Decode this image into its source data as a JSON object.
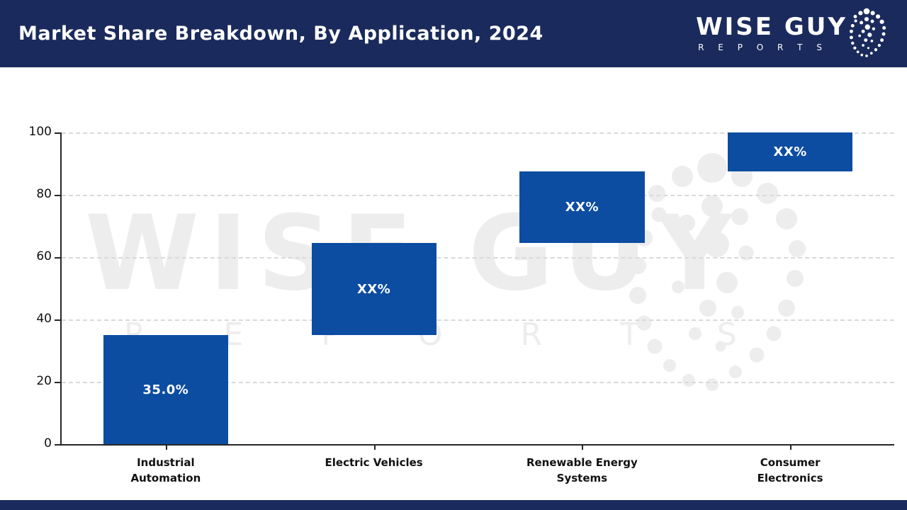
{
  "header": {
    "title": "Market Share Breakdown, By Application, 2024",
    "brand": {
      "name": "WISE GUY",
      "sub": "R E P O R T S"
    }
  },
  "watermark": {
    "name": "WISE GUY",
    "sub": "R E P O R T S"
  },
  "chart_data": {
    "type": "bar",
    "subtype": "waterfall-stacked",
    "title": "Market Share Breakdown, By Application, 2024",
    "categories": [
      "Industrial\nAutomation",
      "Electric Vehicles",
      "Renewable Energy\nSystems",
      "Consumer\nElectronics"
    ],
    "series": [
      {
        "name": "Industrial Automation",
        "start": 0,
        "end": 35,
        "label": "35.0%"
      },
      {
        "name": "Electric Vehicles",
        "start": 35,
        "end": 64.5,
        "label": "XX%"
      },
      {
        "name": "Renewable Energy Systems",
        "start": 64.5,
        "end": 87.5,
        "label": "XX%"
      },
      {
        "name": "Consumer Electronics",
        "start": 87.5,
        "end": 100,
        "label": "XX%"
      }
    ],
    "ylim": [
      0,
      100
    ],
    "yticks": [
      0,
      20,
      40,
      60,
      80,
      100
    ],
    "grid": "horizontal-dashed",
    "legend": "none",
    "bar_color": "#0C4DA2",
    "value_label_color": "#FFFFFF"
  },
  "colors": {
    "header_bg": "#1A2A5C",
    "footer_bg": "#1A2A5C",
    "watermark": "#EDEDED",
    "grid": "#D9D9D9",
    "axis": "#262626"
  }
}
